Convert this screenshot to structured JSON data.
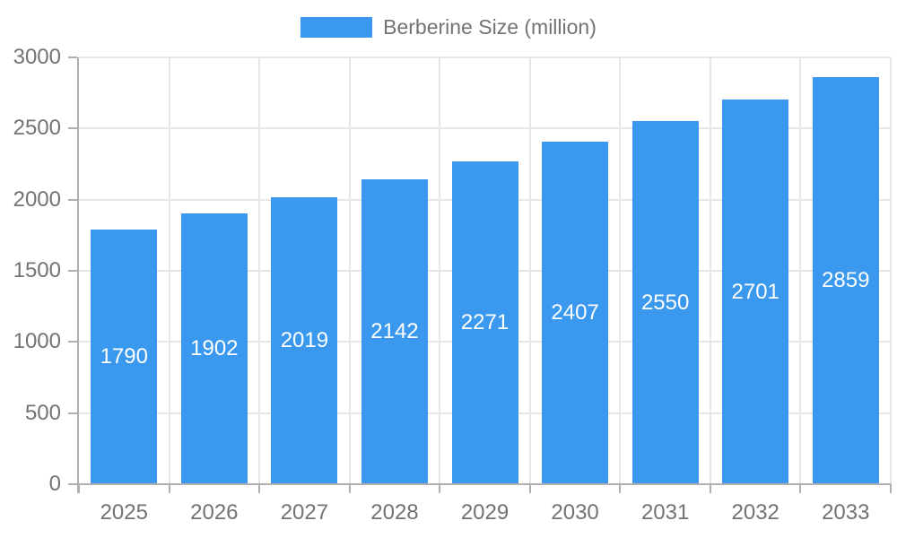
{
  "legend": {
    "label": "Berberine Size (million)"
  },
  "colors": {
    "bar": "#3a99ee",
    "grid": "#e6e6e6",
    "axis": "#b0b0b0",
    "tick_text": "#737373",
    "bar_label_text": "#ffffff",
    "background": "#ffffff"
  },
  "chart_data": {
    "type": "bar",
    "title": "Berberine Size (million)",
    "categories": [
      "2025",
      "2026",
      "2027",
      "2028",
      "2029",
      "2030",
      "2031",
      "2032",
      "2033"
    ],
    "values": [
      1790,
      1902,
      2019,
      2142,
      2271,
      2407,
      2550,
      2701,
      2859
    ],
    "xlabel": "",
    "ylabel": "",
    "ylim": [
      0,
      3000
    ],
    "yticks": [
      0,
      500,
      1000,
      1500,
      2000,
      2500,
      3000
    ],
    "grid": true,
    "legend_position": "top",
    "bar_color": "#3a99ee",
    "value_labels": "inside-center-white"
  }
}
